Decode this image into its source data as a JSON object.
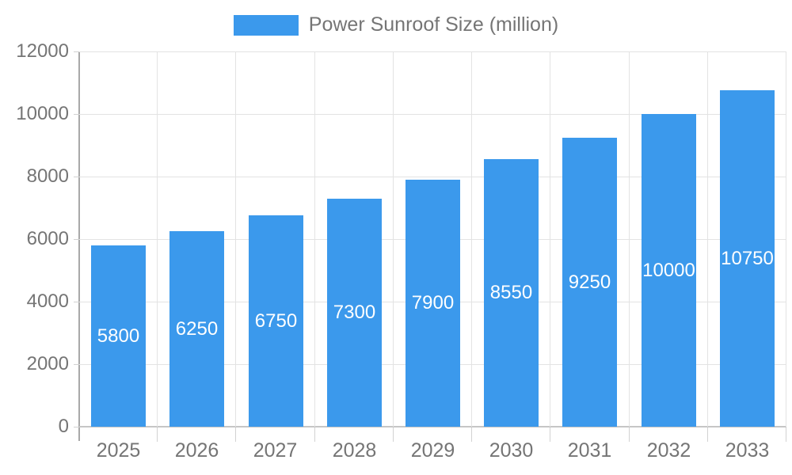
{
  "chart_data": {
    "type": "bar",
    "title": "Power Sunroof Size (million)",
    "categories": [
      "2025",
      "2026",
      "2027",
      "2028",
      "2029",
      "2030",
      "2031",
      "2032",
      "2033"
    ],
    "values": [
      5800,
      6250,
      6750,
      7300,
      7900,
      8550,
      9250,
      10000,
      10750
    ],
    "xlabel": "",
    "ylabel": "",
    "ylim": [
      0,
      12000
    ],
    "ytick_step": 2000,
    "ytick_labels": [
      "0",
      "2000",
      "4000",
      "6000",
      "8000",
      "10000",
      "12000"
    ],
    "grid": true,
    "legend_position": "top-center",
    "value_labels_inside_bars": true,
    "colors": {
      "bar": "#3B99EC",
      "value_label": "#ffffff",
      "axis_text": "#757575",
      "gridline": "#e3e3e3",
      "baseline": "#c6c6c6",
      "axis_line": "#a8a8a8"
    }
  }
}
